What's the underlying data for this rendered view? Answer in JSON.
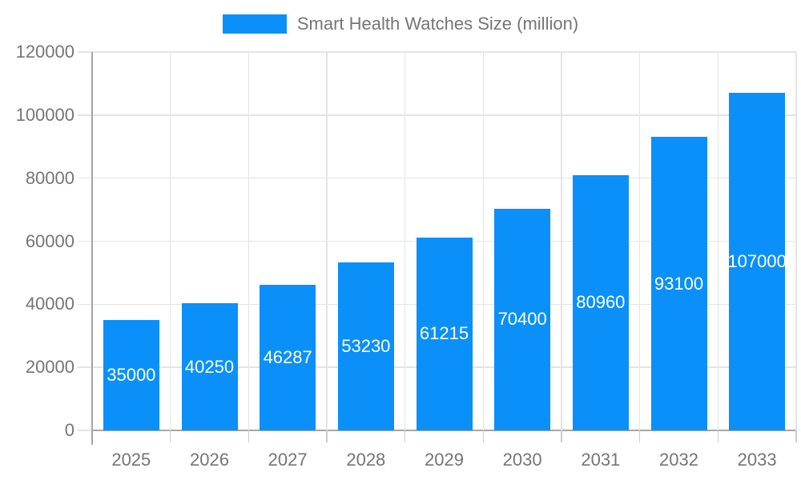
{
  "chart_data": {
    "type": "bar",
    "title": "Smart Health Watches Size (million)",
    "legend_position": "top",
    "categories": [
      "2025",
      "2026",
      "2027",
      "2028",
      "2029",
      "2030",
      "2031",
      "2032",
      "2033"
    ],
    "values": [
      35000,
      40250,
      46287,
      53230,
      61215,
      70400,
      80960,
      93100,
      107000
    ],
    "value_labels": [
      "35000",
      "40250",
      "46287",
      "53230",
      "61215",
      "70400",
      "80960",
      "93100",
      "107000"
    ],
    "xlabel": "",
    "ylabel": "",
    "ylim": [
      0,
      120000
    ],
    "ytick_step": 20000,
    "ytick_labels": [
      "0",
      "20000",
      "40000",
      "60000",
      "80000",
      "100000",
      "120000"
    ],
    "grid": true,
    "colors": {
      "bar": "#0a90f8",
      "axis_label": "#757575",
      "legend_text": "#757575",
      "gridline": "#e4e4e4",
      "axis_line": "#a6a6a6",
      "minor_tick": "#cccccc",
      "value_label": "#ffffff",
      "background": "#ffffff"
    }
  }
}
